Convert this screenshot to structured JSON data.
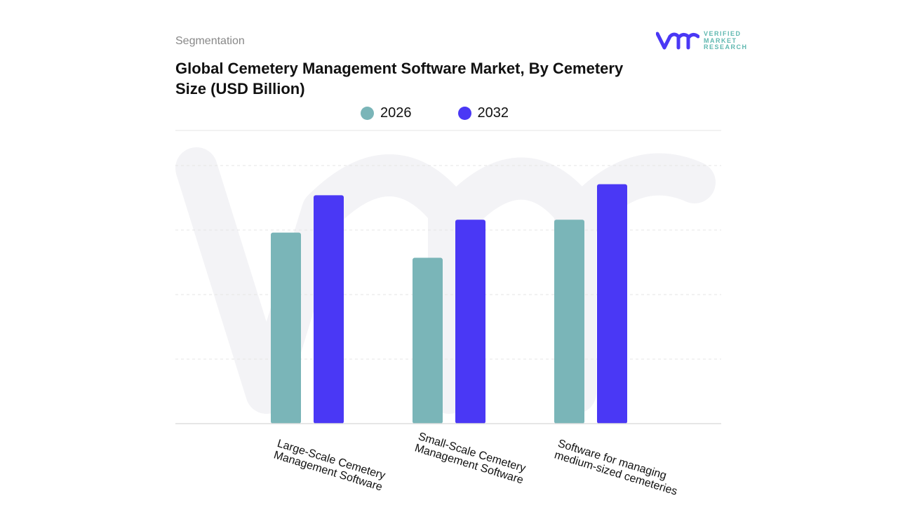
{
  "header": {
    "segment_label": "Segmentation",
    "logo_text": "VERIFIED MARKET RESEARCH"
  },
  "chart_data": {
    "type": "bar",
    "title": "Global Cemetery Management Software Market, By Cemetery Size (USD Billion)",
    "categories": [
      "Large-Scale Cemetery Management Software",
      "Small-Scale Cemetery Management Software",
      "Software for managing medium-sized cemeteries"
    ],
    "series": [
      {
        "name": "2026",
        "color": "#7ab5b8",
        "values": [
          2.96,
          2.57,
          3.16
        ]
      },
      {
        "name": "2032",
        "color": "#4a38f5",
        "values": [
          3.54,
          3.16,
          3.71
        ]
      }
    ],
    "ylim": [
      0,
      4.5
    ],
    "grid": true,
    "legend": "top-center",
    "xlabel": "",
    "ylabel": ""
  }
}
